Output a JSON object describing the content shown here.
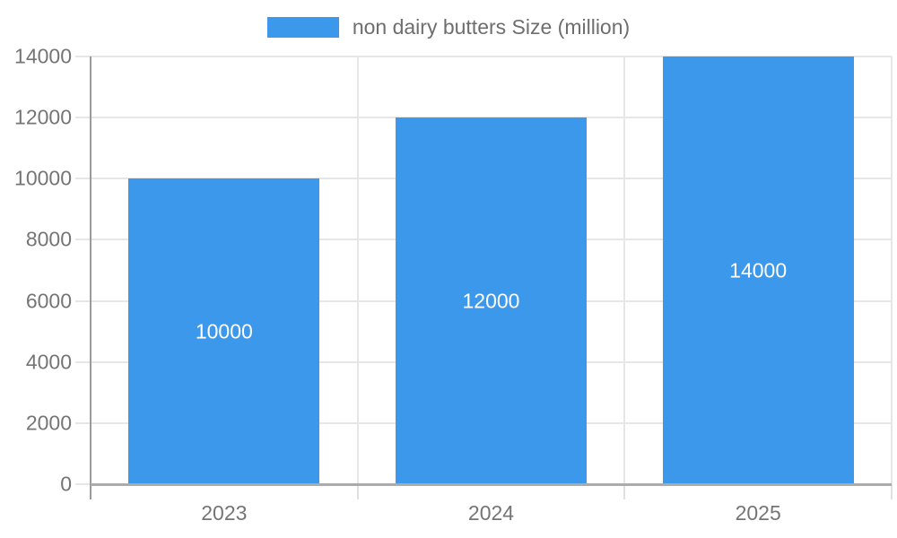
{
  "legend": {
    "label": "non dairy butters Size (million)"
  },
  "chart_data": {
    "type": "bar",
    "title": "",
    "xlabel": "",
    "ylabel": "",
    "categories": [
      "2023",
      "2024",
      "2025"
    ],
    "series": [
      {
        "name": "non dairy butters Size (million)",
        "values": [
          10000,
          12000,
          14000
        ]
      }
    ],
    "bar_labels": [
      "10000",
      "12000",
      "14000"
    ],
    "ylim": [
      0,
      14000
    ],
    "ytick_step": 2000,
    "ytick_labels": [
      "0",
      "2000",
      "4000",
      "6000",
      "8000",
      "10000",
      "12000",
      "14000"
    ],
    "grid": true,
    "legend_position": "top-center",
    "colors": {
      "bar": "#3b98eb",
      "grid": "#e6e6e6",
      "axis_line": "#9a9a9a",
      "baseline": "#ababab",
      "tick_text": "#757575",
      "legend_text": "#6e6e6e",
      "bar_label_text": "#ffffff",
      "background": "#ffffff"
    }
  }
}
